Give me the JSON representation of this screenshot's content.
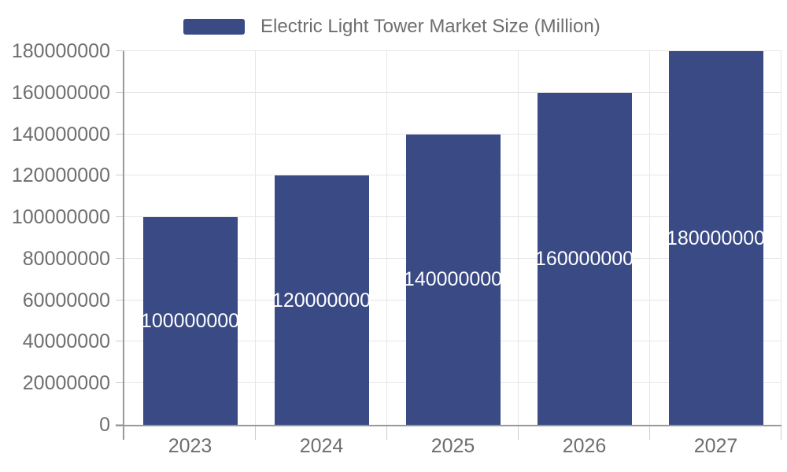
{
  "chart_data": {
    "type": "bar",
    "title": "Electric Light Tower Market Size (Million)",
    "categories": [
      "2023",
      "2024",
      "2025",
      "2026",
      "2027"
    ],
    "values": [
      100000000,
      120000000,
      140000000,
      160000000,
      180000000
    ],
    "series": [
      {
        "name": "Electric Light Tower Market Size (Million)",
        "values": [
          100000000,
          120000000,
          140000000,
          160000000,
          180000000
        ]
      }
    ],
    "value_labels": [
      "100000000",
      "120000000",
      "140000000",
      "160000000",
      "180000000"
    ],
    "xlabel": "",
    "ylabel": "",
    "ylim": [
      0,
      180000000
    ],
    "y_ticks": [
      0,
      20000000,
      40000000,
      60000000,
      80000000,
      100000000,
      120000000,
      140000000,
      160000000,
      180000000
    ],
    "grid": true,
    "legend_position": "top",
    "colors": {
      "bar": "#394A85",
      "value_label": "#FFFFFF",
      "axis_text": "#6E6E6E",
      "grid_line": "#E6E6E6",
      "axis_line": "#999999",
      "tick_line": "#CCCCCC",
      "background": "#FFFFFF"
    }
  }
}
